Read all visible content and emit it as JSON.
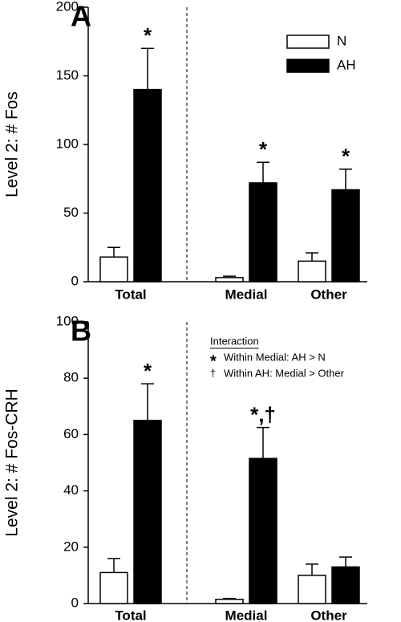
{
  "chart_data": [
    {
      "type": "bar",
      "panel_label": "A",
      "ylabel": "Level 2: # Fos",
      "categories": [
        "Total",
        "Medial",
        "Other"
      ],
      "ylim": [
        0,
        200
      ],
      "yticks": [
        0,
        50,
        100,
        150,
        200
      ],
      "legend": "upper right",
      "series": [
        {
          "name": "N",
          "color": "#ffffff",
          "edgecolor": "#000000",
          "values": [
            18,
            3,
            15
          ],
          "errors": [
            7,
            1,
            6
          ],
          "significance": [
            null,
            null,
            null
          ]
        },
        {
          "name": "AH",
          "color": "#000000",
          "edgecolor": "#000000",
          "values": [
            140,
            72,
            67
          ],
          "errors": [
            30,
            15,
            15
          ],
          "significance": [
            "*",
            "*",
            "*"
          ]
        }
      ]
    },
    {
      "type": "bar",
      "panel_label": "B",
      "ylabel": "Level 2: # Fos-CRH",
      "categories": [
        "Total",
        "Medial",
        "Other"
      ],
      "ylim": [
        0,
        100
      ],
      "yticks": [
        0,
        20,
        40,
        60,
        80,
        100
      ],
      "note_title": "Interaction",
      "notes": [
        {
          "symbol": "*",
          "text": "Within Medial: AH > N"
        },
        {
          "symbol": "†",
          "text": "Within AH: Medial > Other"
        }
      ],
      "series": [
        {
          "color": "#ffffff",
          "edgecolor": "#000000",
          "values": [
            11,
            1.5,
            10
          ],
          "errors": [
            5,
            0.3,
            4
          ],
          "significance": [
            null,
            null,
            null
          ]
        },
        {
          "color": "#000000",
          "edgecolor": "#000000",
          "values": [
            65,
            51.5,
            13
          ],
          "errors": [
            13,
            11,
            3.5
          ],
          "significance": [
            "*",
            "*,†",
            null
          ]
        }
      ]
    }
  ]
}
